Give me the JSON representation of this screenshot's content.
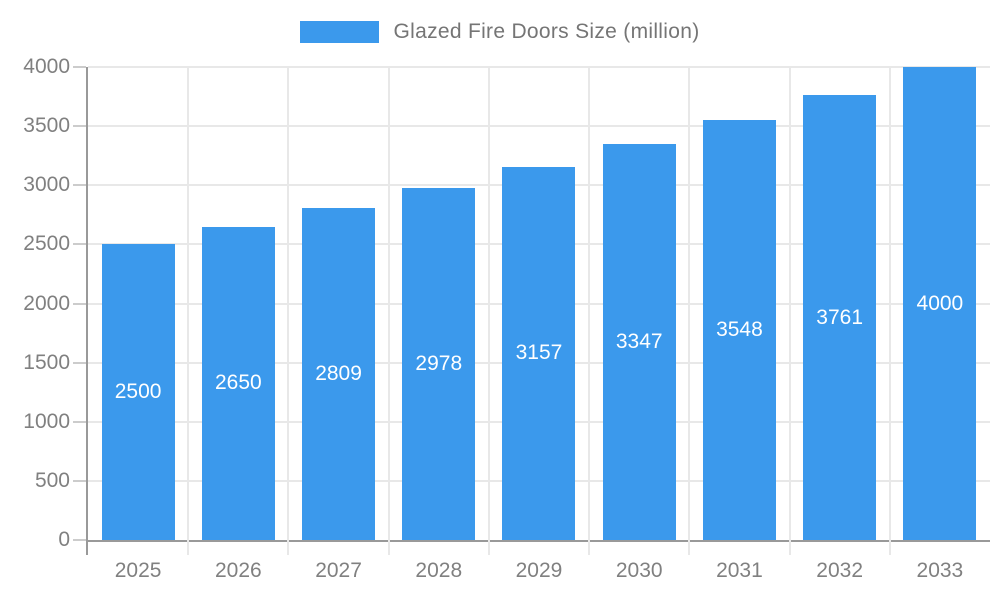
{
  "legend": {
    "label": "Glazed Fire Doors Size (million)"
  },
  "chart_data": {
    "type": "bar",
    "title": "Glazed Fire Doors Size (million)",
    "categories": [
      "2025",
      "2026",
      "2027",
      "2028",
      "2029",
      "2030",
      "2031",
      "2032",
      "2033"
    ],
    "values": [
      2500,
      2650,
      2809,
      2978,
      3157,
      3347,
      3548,
      3761,
      4000
    ],
    "value_labels": [
      "2500",
      "2650",
      "2809",
      "2978",
      "3157",
      "3347",
      "3548",
      "3761",
      "4000"
    ],
    "xlabel": "",
    "ylabel": "",
    "ylim": [
      0,
      4000
    ],
    "ytick_step": 500,
    "ytick_labels": [
      "0",
      "500",
      "1000",
      "1500",
      "2000",
      "2500",
      "3000",
      "3500",
      "4000"
    ],
    "grid": true,
    "legend_position": "top-center",
    "colors": {
      "bar": "#3b99ec",
      "grid": "#e8e8e8",
      "axis": "#999999",
      "tick": "#cccccc",
      "tick_text": "#808080",
      "legend_text": "#757575",
      "value_text": "#ffffff"
    }
  }
}
